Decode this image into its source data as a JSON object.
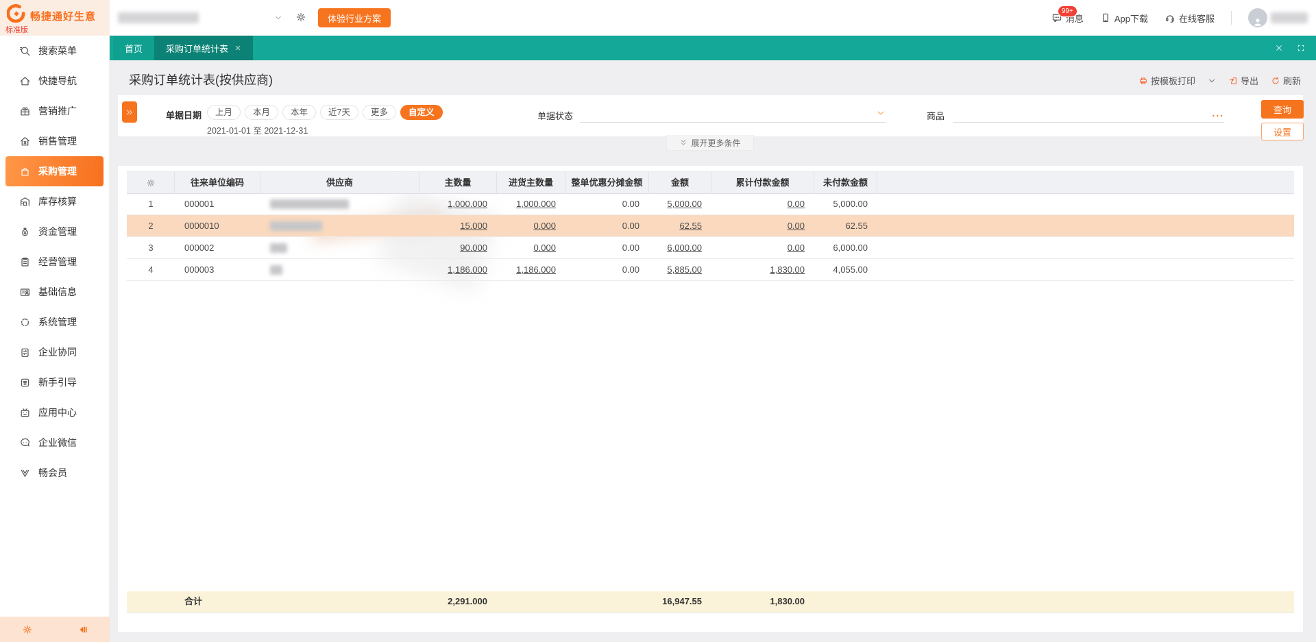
{
  "topbar": {
    "logo_title": "畅捷通好生意",
    "logo_subtitle": "标准版",
    "trial_button": "体验行业方案",
    "messages_label": "消息",
    "messages_badge": "99+",
    "app_download_label": "App下载",
    "support_label": "在线客服"
  },
  "tabs": {
    "home_label": "首页",
    "active_label": "采购订单统计表"
  },
  "page": {
    "title": "采购订单统计表(按供应商)",
    "print_label": "按模板打印",
    "export_label": "导出",
    "refresh_label": "刷新"
  },
  "filters": {
    "date_label": "单据日期",
    "date_quick_options": [
      "上月",
      "本月",
      "本年",
      "近7天",
      "更多"
    ],
    "date_custom_label": "自定义",
    "date_range": "2021-01-01 至 2021-12-31",
    "status_label": "单据状态",
    "product_label": "商品",
    "product_picker": "...",
    "query_button": "查询",
    "settings_button": "设置",
    "expand_more_label": "展开更多条件"
  },
  "sidebar": {
    "items": [
      {
        "label": "搜索菜单",
        "name": "search-menu",
        "icon": "search",
        "active": false
      },
      {
        "label": "快捷导航",
        "name": "quick-nav",
        "icon": "home",
        "active": false
      },
      {
        "label": "营销推广",
        "name": "marketing",
        "icon": "gift",
        "active": false
      },
      {
        "label": "销售管理",
        "name": "sales-mgmt",
        "icon": "sale",
        "active": false
      },
      {
        "label": "采购管理",
        "name": "purchase-mgmt",
        "icon": "bag",
        "active": true
      },
      {
        "label": "库存核算",
        "name": "inventory",
        "icon": "store",
        "active": false
      },
      {
        "label": "资金管理",
        "name": "funds",
        "icon": "money",
        "active": false
      },
      {
        "label": "经营管理",
        "name": "operations",
        "icon": "clip",
        "active": false
      },
      {
        "label": "基础信息",
        "name": "base-info",
        "icon": "card",
        "active": false
      },
      {
        "label": "系统管理",
        "name": "system-mgmt",
        "icon": "sys",
        "active": false
      },
      {
        "label": "企业协同",
        "name": "enterprise-collab",
        "icon": "collab",
        "active": false
      },
      {
        "label": "新手引导",
        "name": "beginner-guide",
        "icon": "guide",
        "active": false
      },
      {
        "label": "应用中心",
        "name": "app-center",
        "icon": "tv",
        "active": false
      },
      {
        "label": "企业微信",
        "name": "wecom",
        "icon": "wechat",
        "active": false
      },
      {
        "label": "畅会员",
        "name": "member",
        "icon": "vip",
        "active": false
      }
    ]
  },
  "table": {
    "headers": [
      "往来单位编码",
      "供应商",
      "主数量",
      "进货主数量",
      "整单优惠分摊金额",
      "金额",
      "累计付款金额",
      "未付款金额"
    ],
    "rows": [
      {
        "idx": "1",
        "code": "000001",
        "qty": "1,000.000",
        "in_qty": "1,000.000",
        "discount": "0.00",
        "amount": "5,000.00",
        "paid": "0.00",
        "unpaid": "5,000.00",
        "highlight": false,
        "supplier_blur_width": 115
      },
      {
        "idx": "2",
        "code": "0000010",
        "qty": "15.000",
        "in_qty": "0.000",
        "discount": "0.00",
        "amount": "62.55",
        "paid": "0.00",
        "unpaid": "62.55",
        "highlight": true,
        "supplier_blur_width": 76
      },
      {
        "idx": "3",
        "code": "000002",
        "qty": "90.000",
        "in_qty": "0.000",
        "discount": "0.00",
        "amount": "6,000.00",
        "paid": "0.00",
        "unpaid": "6,000.00",
        "highlight": false,
        "supplier_blur_width": 25
      },
      {
        "idx": "4",
        "code": "000003",
        "qty": "1,186.000",
        "in_qty": "1,186.000",
        "discount": "0.00",
        "amount": "5,885.00",
        "paid": "1,830.00",
        "unpaid": "4,055.00",
        "highlight": false,
        "supplier_blur_width": 18
      }
    ],
    "footer": {
      "label": "合计",
      "qty_total": "2,291.000",
      "amount_total": "16,947.55",
      "paid_total": "1,830.00"
    }
  },
  "colors": {
    "teal_bar": "#13A897",
    "teal_tab_active": "#0B8275",
    "accent_orange": "#F7741F",
    "badge_red": "#F04134",
    "row_highlight": "#FAD9BE",
    "footer_row_bg": "#FBF3D9"
  }
}
